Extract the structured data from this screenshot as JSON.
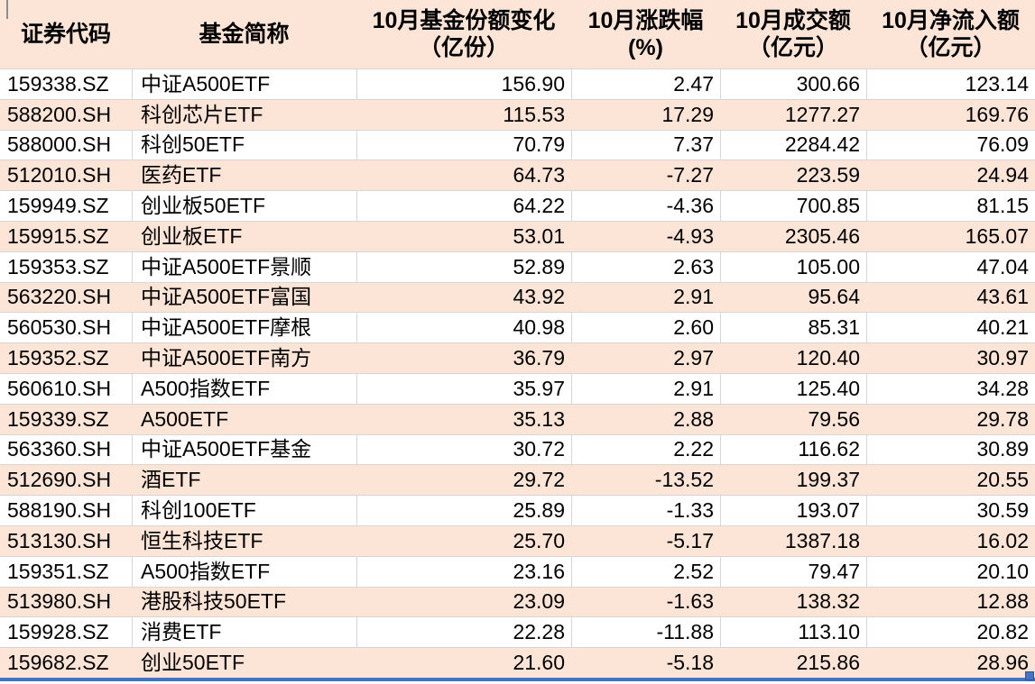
{
  "table": {
    "columns": [
      {
        "id": "code",
        "label_lines": [
          "证券代码"
        ],
        "align": "left"
      },
      {
        "id": "name",
        "label_lines": [
          "基金简称"
        ],
        "align": "left"
      },
      {
        "id": "share_change",
        "label_lines": [
          "10月基金份额变化",
          "（亿份）"
        ],
        "align": "right"
      },
      {
        "id": "pct_change",
        "label_lines": [
          "10月涨跌幅",
          "(%)"
        ],
        "align": "right"
      },
      {
        "id": "turnover",
        "label_lines": [
          "10月成交额",
          "（亿元）"
        ],
        "align": "right"
      },
      {
        "id": "net_inflow",
        "label_lines": [
          "10月净流入额",
          "（亿元）"
        ],
        "align": "right"
      }
    ],
    "rows": [
      {
        "code": "159338.SZ",
        "name": "中证A500ETF",
        "share_change": "156.90",
        "pct_change": "2.47",
        "turnover": "300.66",
        "net_inflow": "123.14"
      },
      {
        "code": "588200.SH",
        "name": "科创芯片ETF",
        "share_change": "115.53",
        "pct_change": "17.29",
        "turnover": "1277.27",
        "net_inflow": "169.76"
      },
      {
        "code": "588000.SH",
        "name": "科创50ETF",
        "share_change": "70.79",
        "pct_change": "7.37",
        "turnover": "2284.42",
        "net_inflow": "76.09"
      },
      {
        "code": "512010.SH",
        "name": "医药ETF",
        "share_change": "64.73",
        "pct_change": "-7.27",
        "turnover": "223.59",
        "net_inflow": "24.94"
      },
      {
        "code": "159949.SZ",
        "name": "创业板50ETF",
        "share_change": "64.22",
        "pct_change": "-4.36",
        "turnover": "700.85",
        "net_inflow": "81.15"
      },
      {
        "code": "159915.SZ",
        "name": "创业板ETF",
        "share_change": "53.01",
        "pct_change": "-4.93",
        "turnover": "2305.46",
        "net_inflow": "165.07"
      },
      {
        "code": "159353.SZ",
        "name": "中证A500ETF景顺",
        "share_change": "52.89",
        "pct_change": "2.63",
        "turnover": "105.00",
        "net_inflow": "47.04"
      },
      {
        "code": "563220.SH",
        "name": "中证A500ETF富国",
        "share_change": "43.92",
        "pct_change": "2.91",
        "turnover": "95.64",
        "net_inflow": "43.61"
      },
      {
        "code": "560530.SH",
        "name": "中证A500ETF摩根",
        "share_change": "40.98",
        "pct_change": "2.60",
        "turnover": "85.31",
        "net_inflow": "40.21"
      },
      {
        "code": "159352.SZ",
        "name": "中证A500ETF南方",
        "share_change": "36.79",
        "pct_change": "2.97",
        "turnover": "120.40",
        "net_inflow": "30.97"
      },
      {
        "code": "560610.SH",
        "name": "A500指数ETF",
        "share_change": "35.97",
        "pct_change": "2.91",
        "turnover": "125.40",
        "net_inflow": "34.28"
      },
      {
        "code": "159339.SZ",
        "name": "A500ETF",
        "share_change": "35.13",
        "pct_change": "2.88",
        "turnover": "79.56",
        "net_inflow": "29.78"
      },
      {
        "code": "563360.SH",
        "name": "中证A500ETF基金",
        "share_change": "30.72",
        "pct_change": "2.22",
        "turnover": "116.62",
        "net_inflow": "30.89"
      },
      {
        "code": "512690.SH",
        "name": "酒ETF",
        "share_change": "29.72",
        "pct_change": "-13.52",
        "turnover": "199.37",
        "net_inflow": "20.55"
      },
      {
        "code": "588190.SH",
        "name": "科创100ETF",
        "share_change": "25.89",
        "pct_change": "-1.33",
        "turnover": "193.07",
        "net_inflow": "30.59"
      },
      {
        "code": "513130.SH",
        "name": "恒生科技ETF",
        "share_change": "25.70",
        "pct_change": "-5.17",
        "turnover": "1387.18",
        "net_inflow": "16.02"
      },
      {
        "code": "159351.SZ",
        "name": "A500指数ETF",
        "share_change": "23.16",
        "pct_change": "2.52",
        "turnover": "79.47",
        "net_inflow": "20.10"
      },
      {
        "code": "513980.SH",
        "name": "港股科技50ETF",
        "share_change": "23.09",
        "pct_change": "-1.63",
        "turnover": "138.32",
        "net_inflow": "12.88"
      },
      {
        "code": "159928.SZ",
        "name": "消费ETF",
        "share_change": "22.28",
        "pct_change": "-11.88",
        "turnover": "113.10",
        "net_inflow": "20.82"
      },
      {
        "code": "159682.SZ",
        "name": "创业50ETF",
        "share_change": "21.60",
        "pct_change": "-5.18",
        "turnover": "215.86",
        "net_inflow": "28.96"
      }
    ]
  },
  "colors": {
    "header_bg": "#fce4d6",
    "row_alt_bg": "#fce4d6",
    "row_bg": "#ffffff",
    "gridline": "#d6d6d6",
    "selection_blue": "#4472c4",
    "text": "#000000"
  },
  "selection": {
    "bottom_border_visible": true,
    "fill_handle_position": "bottom-right"
  }
}
